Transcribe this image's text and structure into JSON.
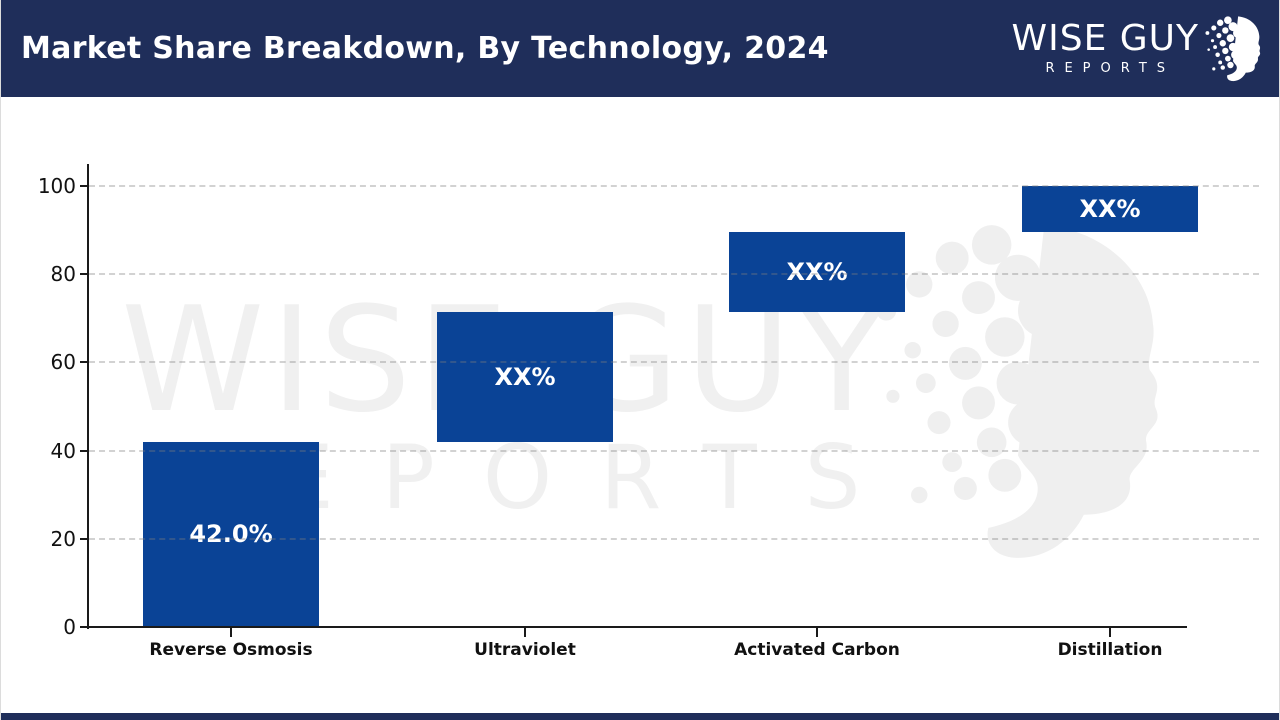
{
  "header": {
    "title": "Market Share Breakdown, By Technology, 2024",
    "logo": {
      "line1": "WISE GUY",
      "line2": "REPORTS",
      "head_icon": "dotted-head-profile"
    }
  },
  "watermark": {
    "line1": "WISE GUY",
    "line2": "REPORTS",
    "head_icon": "dotted-head-profile"
  },
  "chart_data": {
    "type": "bar",
    "subtype": "waterfall",
    "title": "Market Share Breakdown, By Technology, 2024",
    "categories": [
      "Reverse Osmosis",
      "Ultraviolet",
      "Activated Carbon",
      "Distillation"
    ],
    "series": [
      {
        "name": "Market Share",
        "segments": [
          {
            "category": "Reverse Osmosis",
            "start": 0,
            "end": 42,
            "label": "42.0%"
          },
          {
            "category": "Ultraviolet",
            "start": 42,
            "end": 71.5,
            "label": "XX%"
          },
          {
            "category": "Activated Carbon",
            "start": 71.5,
            "end": 89.5,
            "label": "XX%"
          },
          {
            "category": "Distillation",
            "start": 89.5,
            "end": 100,
            "label": "XX%"
          }
        ]
      }
    ],
    "yticks": [
      0,
      20,
      40,
      60,
      80,
      100
    ],
    "ylim": [
      0,
      105
    ],
    "xlabel": "",
    "ylabel": "",
    "grid": "horizontal-dashed",
    "legend": "none",
    "colors": {
      "bar": "#0A4396",
      "bar_label": "#FFFFFF",
      "grid": "#D9D9D9",
      "axis": "#1A1A1A",
      "header_bg": "#1F2E5A",
      "watermark": "#F0F0F0"
    }
  }
}
